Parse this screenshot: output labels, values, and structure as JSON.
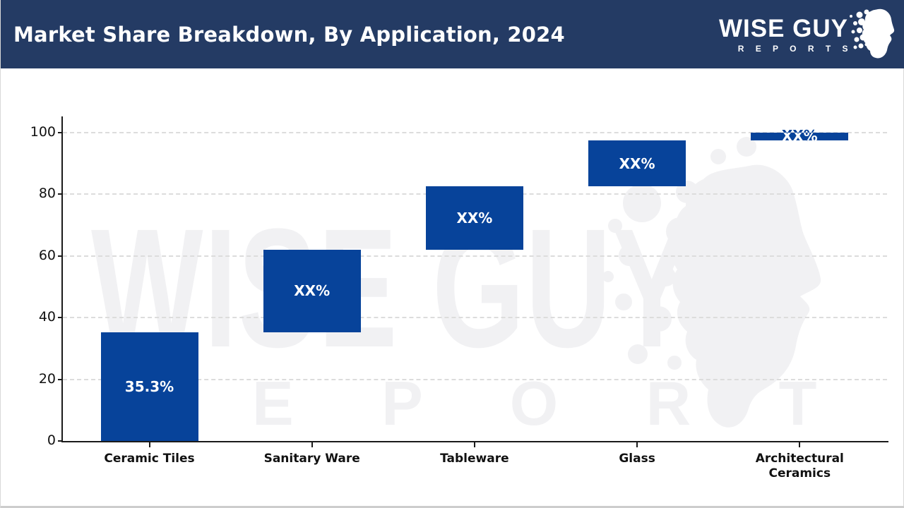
{
  "header": {
    "title": "Market Share Breakdown, By Application, 2024",
    "logo": {
      "line1": "WISE GUY",
      "line2": "R E P O R T S"
    }
  },
  "watermark": {
    "line1": "WISE GUY",
    "line2": "R E P O R T S"
  },
  "colors": {
    "header_bg": "#243b64",
    "bar": "#07439a",
    "axis": "#1a1a1a",
    "grid": "#dcdcdc",
    "watermark": "#f1f1f3",
    "label_on_bar": "#ffffff"
  },
  "chart_data": {
    "type": "bar",
    "subtype": "waterfall",
    "title": "Market Share Breakdown, By Application, 2024",
    "xlabel": "",
    "ylabel": "",
    "ylim": [
      0,
      105
    ],
    "yticks": [
      0,
      20,
      40,
      60,
      80,
      100
    ],
    "grid": "horizontal-dashed",
    "legend": false,
    "categories": [
      "Ceramic Tiles",
      "Sanitary Ware",
      "Tableware",
      "Glass",
      "Architectural Ceramics"
    ],
    "segments": [
      {
        "category": "Ceramic Tiles",
        "start": 0,
        "end": 35.3,
        "label": "35.3%"
      },
      {
        "category": "Sanitary Ware",
        "start": 35.3,
        "end": 61.9,
        "label": "XX%"
      },
      {
        "category": "Tableware",
        "start": 61.9,
        "end": 82.5,
        "label": "XX%"
      },
      {
        "category": "Glass",
        "start": 82.5,
        "end": 97.4,
        "label": "XX%"
      },
      {
        "category": "Architectural Ceramics",
        "start": 97.4,
        "end": 100,
        "label": "XX%"
      }
    ]
  }
}
